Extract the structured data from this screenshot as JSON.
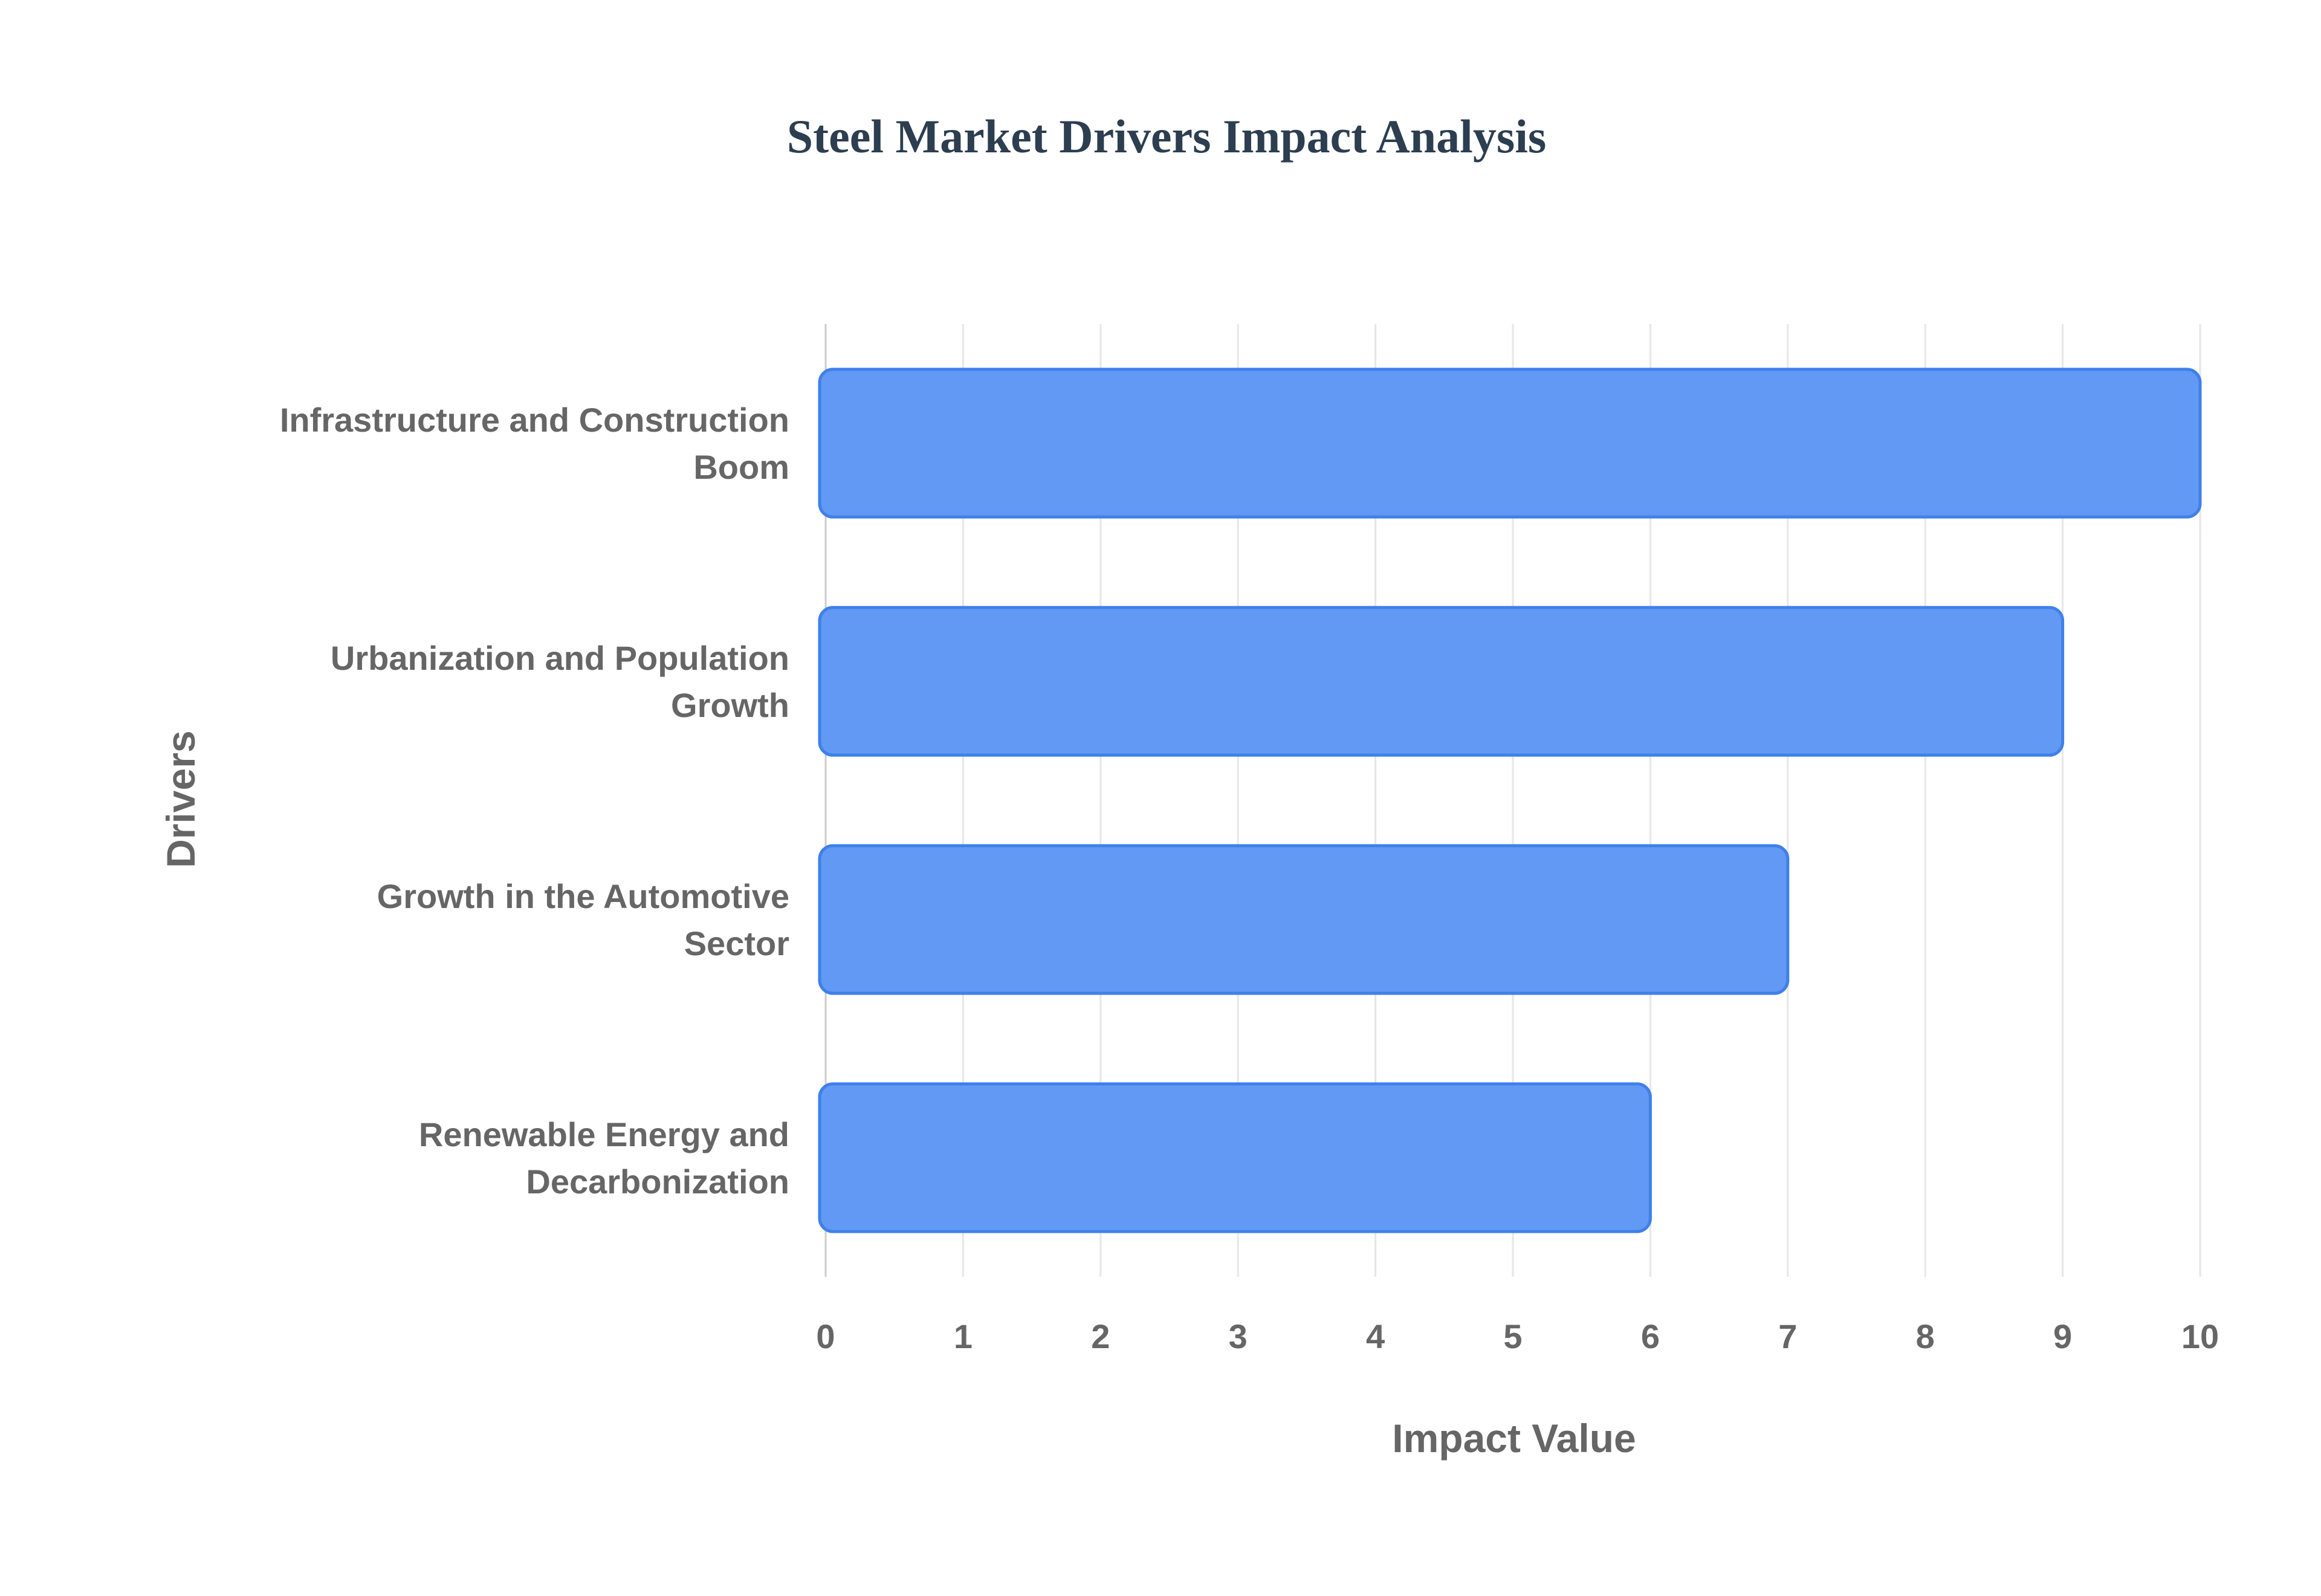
{
  "chart_data": {
    "type": "bar",
    "orientation": "horizontal",
    "title": "Steel Market Drivers Impact Analysis",
    "xlabel": "Impact Value",
    "ylabel": "Drivers",
    "categories": [
      [
        "Infrastructure and Construction",
        "Boom"
      ],
      [
        "Urbanization and Population",
        "Growth"
      ],
      [
        "Growth in the Automotive",
        "Sector"
      ],
      [
        "Renewable Energy and",
        "Decarbonization"
      ]
    ],
    "values": [
      10,
      9,
      7,
      6
    ],
    "xlim": [
      0,
      10
    ],
    "xticks": [
      "0",
      "1",
      "2",
      "3",
      "4",
      "5",
      "6",
      "7",
      "8",
      "9",
      "10"
    ],
    "grid": true,
    "legend": "none",
    "colors": {
      "bar_fill": "#6199f4",
      "bar_stroke": "#3f80ea",
      "text": "#666666",
      "title": "#2c3e50"
    }
  }
}
